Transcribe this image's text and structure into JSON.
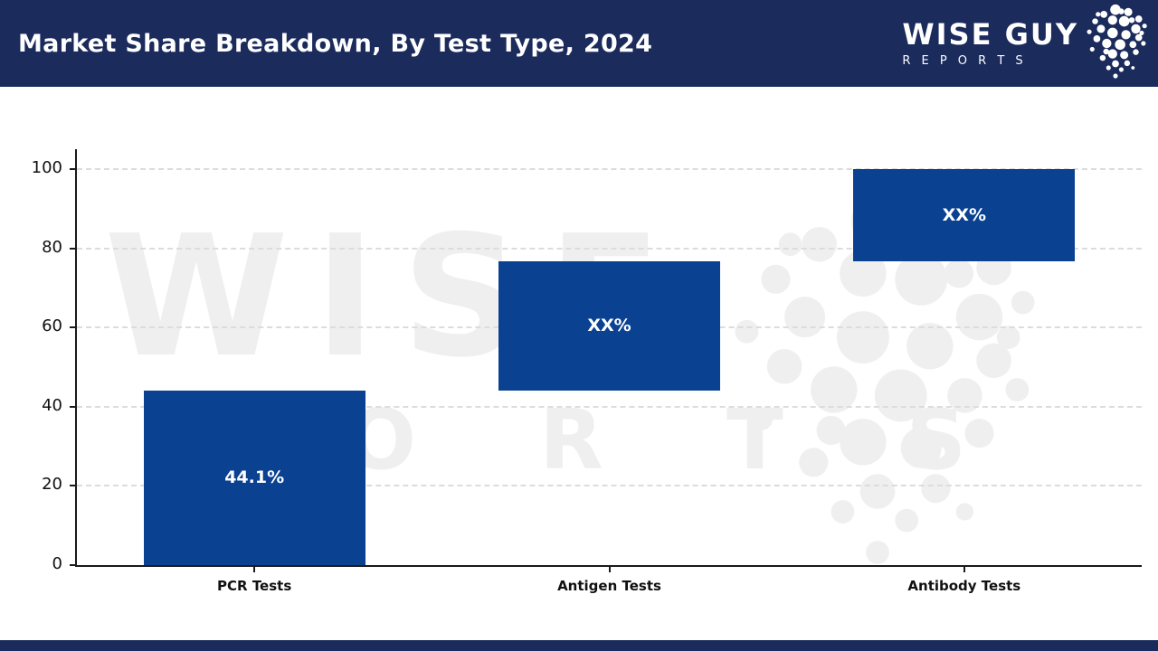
{
  "header": {
    "title": "Market Share Breakdown, By Test Type, 2024",
    "logo": {
      "line1": "WISE GUY",
      "line2": "R E P O R T S"
    }
  },
  "watermark": {
    "line1": "WISE",
    "line2": "R O R T S"
  },
  "colors": {
    "header_bg": "#1a2b5c",
    "footer_bg": "#1a2b5c",
    "bar": "#0a4191",
    "grid": "#dcdcdc",
    "axis": "#1a1a1a",
    "bar_label": "#ffffff",
    "watermark": "#efefef"
  },
  "chart_data": {
    "type": "bar",
    "subtype": "waterfall",
    "title": "Market Share Breakdown, By Test Type, 2024",
    "xlabel": "",
    "ylabel": "",
    "categories": [
      "PCR Tests",
      "Antigen Tests",
      "Antibody Tests"
    ],
    "segments": [
      {
        "category": "PCR Tests",
        "start": 0,
        "end": 44.1,
        "label": "44.1%"
      },
      {
        "category": "Antigen Tests",
        "start": 44.1,
        "end": 76.7,
        "label": "XX%"
      },
      {
        "category": "Antibody Tests",
        "start": 76.7,
        "end": 100,
        "label": "XX%"
      }
    ],
    "y_ticks": [
      0,
      20,
      40,
      60,
      80,
      100
    ],
    "ylim": [
      0,
      105
    ],
    "grid": "dashed horizontal",
    "legend": "none"
  }
}
